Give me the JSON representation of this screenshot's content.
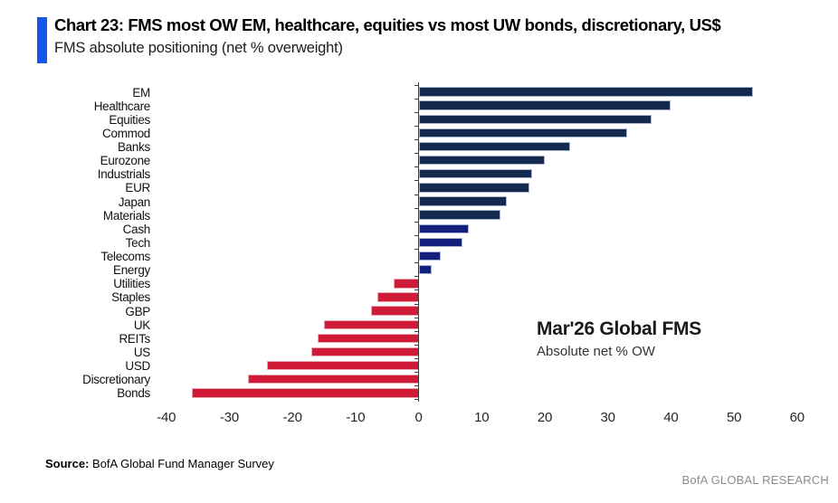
{
  "header": {
    "title": "Chart 23: FMS most OW EM, healthcare, equities vs most UW bonds, discretionary, US$",
    "subtitle": "FMS absolute positioning (net % overweight)",
    "accent_color": "#1656e8"
  },
  "annotation": {
    "line1": "Mar'26 Global FMS",
    "line2": "Absolute net % OW"
  },
  "footer": {
    "source_label": "Source:",
    "source_text": " BofA Global Fund Manager Survey",
    "brand": "BofA GLOBAL RESEARCH"
  },
  "chart_data": {
    "type": "bar",
    "orientation": "horizontal",
    "title": "FMS absolute positioning (net % overweight)",
    "xlabel": "net % overweight",
    "ylabel": "",
    "xlim": [
      -40,
      60
    ],
    "x_ticks": [
      -40,
      -30,
      -20,
      -10,
      0,
      10,
      20,
      30,
      40,
      50,
      60
    ],
    "grid": false,
    "legend": null,
    "categories": [
      "EM",
      "Healthcare",
      "Equities",
      "Commod",
      "Banks",
      "Eurozone",
      "Industrials",
      "EUR",
      "Japan",
      "Materials",
      "Cash",
      "Tech",
      "Telecoms",
      "Energy",
      "Utilities",
      "Staples",
      "GBP",
      "UK",
      "REITs",
      "US",
      "USD",
      "Discretionary",
      "Bonds"
    ],
    "values": [
      53,
      40,
      37,
      33,
      24,
      20,
      18,
      17.5,
      14,
      13,
      8,
      7,
      3.5,
      2,
      -4,
      -6.5,
      -7.5,
      -15,
      -16,
      -17,
      -24,
      -27,
      -36
    ],
    "bar_color_keys": [
      "navy",
      "navy",
      "navy",
      "navy",
      "navy",
      "navy",
      "navy",
      "navy",
      "navy",
      "navy",
      "navy_bright",
      "navy_bright",
      "navy_bright",
      "navy_bright",
      "red",
      "red",
      "red",
      "red",
      "red",
      "red",
      "red",
      "red",
      "red"
    ],
    "colors": {
      "navy": "#14294e",
      "navy_bright": "#131f7d",
      "red": "#cf1a38",
      "axis": "#3c3c3c"
    }
  }
}
